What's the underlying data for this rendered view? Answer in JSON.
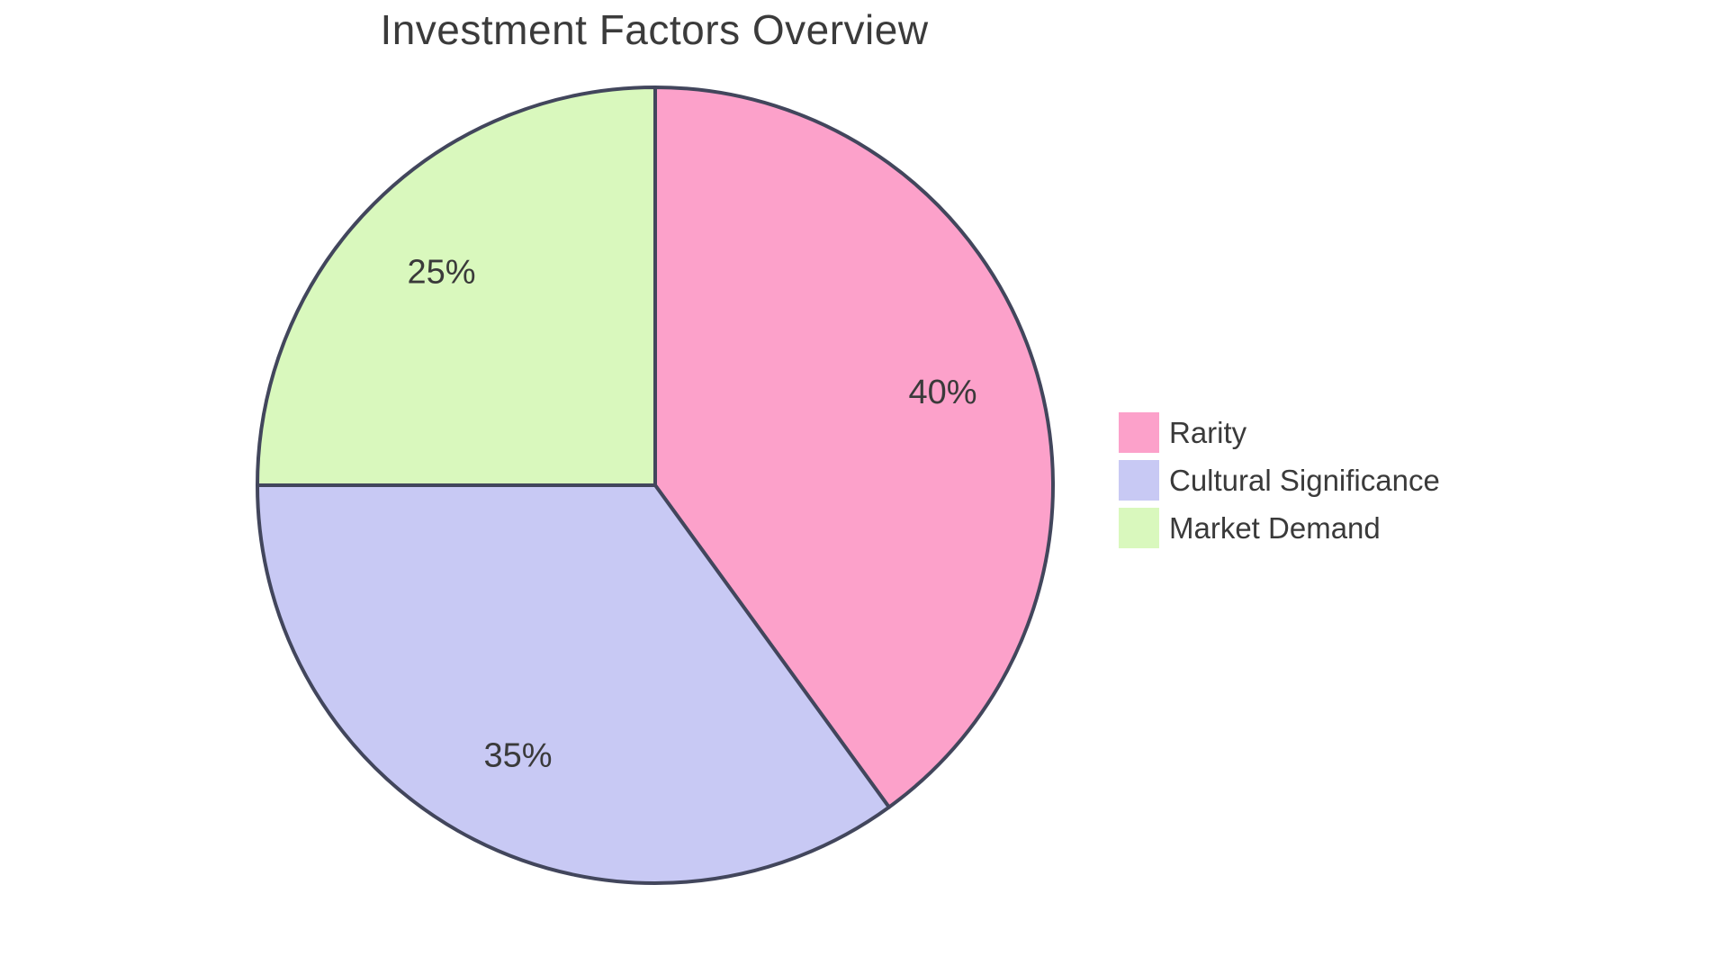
{
  "title": "Investment Factors Overview",
  "chart_data": {
    "type": "pie",
    "labels": [
      "Rarity",
      "Cultural Significance",
      "Market Demand"
    ],
    "values": [
      40,
      35,
      25
    ],
    "slice_text": [
      "40%",
      "35%",
      "25%"
    ],
    "colors": [
      "#FCA1CA",
      "#C8C9F4",
      "#D9F8BD"
    ],
    "slice_border_color": "#42465C",
    "label_text_color": "#3A3A3A",
    "title": "Investment Factors Overview",
    "start_position": "top",
    "direction": "clockwise",
    "legend_position": "right",
    "background": "#FFFFFF"
  },
  "legend": {
    "items": [
      {
        "label": "Rarity",
        "color": "#FCA1CA"
      },
      {
        "label": "Cultural Significance",
        "color": "#C8C9F4"
      },
      {
        "label": "Market Demand",
        "color": "#D9F8BD"
      }
    ]
  }
}
